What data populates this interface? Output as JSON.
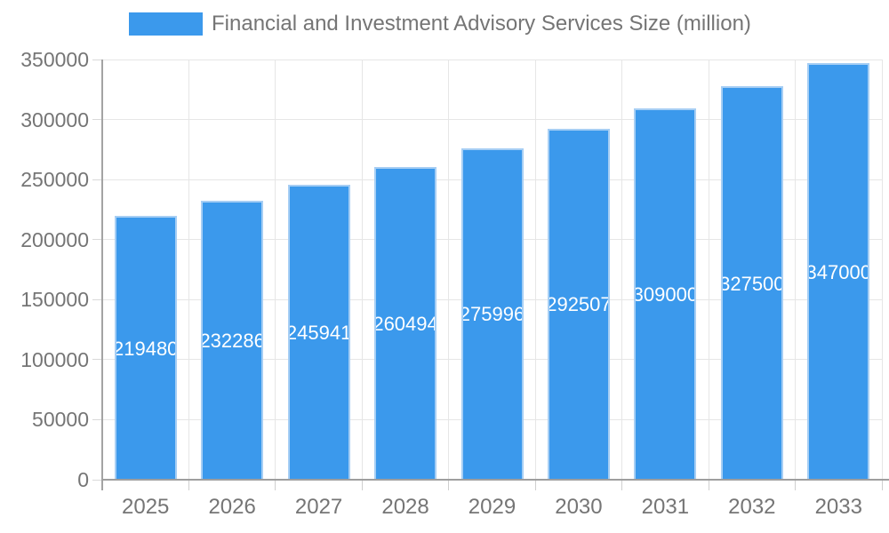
{
  "chart_data": {
    "type": "bar",
    "title": "Financial and Investment Advisory Services Size (million)",
    "categories": [
      "2025",
      "2026",
      "2027",
      "2028",
      "2029",
      "2030",
      "2031",
      "2032",
      "2033"
    ],
    "values": [
      219480,
      232286,
      245941,
      260494,
      275996,
      292507,
      309000,
      327500,
      347000
    ],
    "series": [
      {
        "name": "Financial and Investment Advisory Services Size (million)",
        "values": [
          219480,
          232286,
          245941,
          260494,
          275996,
          292507,
          309000,
          327500,
          347000
        ]
      }
    ],
    "xlabel": "",
    "ylabel": "",
    "ylim": [
      0,
      350000
    ],
    "yticks": [
      0,
      50000,
      100000,
      150000,
      200000,
      250000,
      300000,
      350000
    ],
    "grid": "on",
    "legend_position": "top",
    "data_labels": "inside-center-white"
  },
  "colors": {
    "bar_fill": "#3b99ec",
    "bar_border": "#a6cef4",
    "grid": "#e6e6e6",
    "axis": "#9e9e9e",
    "text": "#757575",
    "value_label": "#ffffff"
  }
}
